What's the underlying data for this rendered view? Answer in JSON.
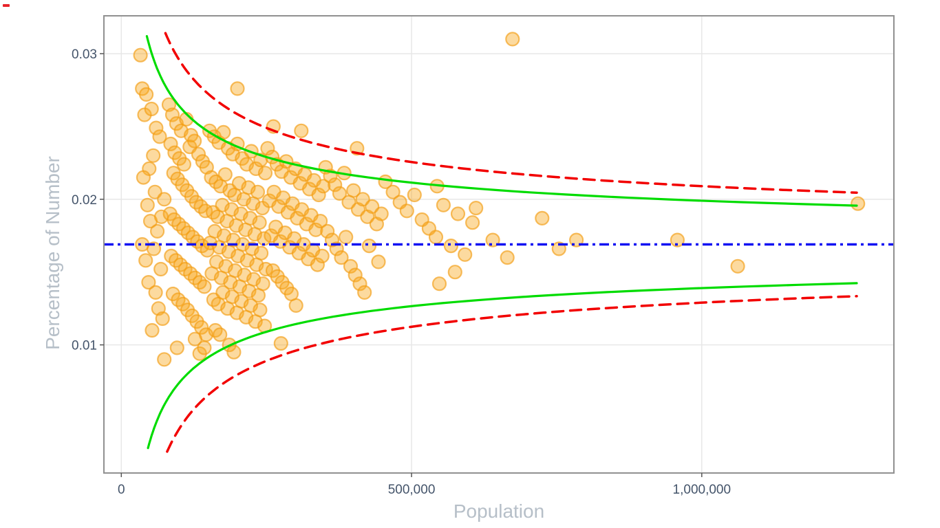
{
  "chart_data": {
    "type": "scatter",
    "title": "",
    "xlabel": "Population",
    "ylabel": "Percentage of Number",
    "xlim": [
      -30000,
      1331000
    ],
    "ylim": [
      0.0012,
      0.0326
    ],
    "grid": true,
    "legend": "none",
    "x_ticks": {
      "values": [
        0,
        500000,
        1000000
      ],
      "labels": [
        "0",
        "500,000",
        "1,000,000"
      ]
    },
    "y_ticks": {
      "values": [
        0.01,
        0.02,
        0.03
      ],
      "labels": [
        "0.01",
        "0.02",
        "0.03"
      ]
    },
    "mean_line": {
      "value": 0.0169,
      "color": "#1212f2",
      "pattern": "dash-dot"
    },
    "funnel_limits": {
      "inner": {
        "multiplier": 3.0,
        "color": "#00dc00",
        "style": "solid",
        "n_start_upper": 44000,
        "n_start_lower": 46000,
        "n_end": 1267000
      },
      "outer": {
        "multiplier": 4.0,
        "color": "#f20000",
        "style": "dashed",
        "n_start_upper": 76000,
        "n_start_lower": 79000,
        "n_end": 1267000
      }
    },
    "point_style": {
      "fill": "#f9a61b",
      "fill_opacity": 0.42,
      "stroke": "#f39c12",
      "stroke_opacity": 0.65,
      "radius": 9.5
    },
    "points": [
      [
        33000,
        0.0299
      ],
      [
        36000,
        0.0276
      ],
      [
        43000,
        0.0272
      ],
      [
        40000,
        0.0258
      ],
      [
        52000,
        0.0262
      ],
      [
        48000,
        0.0221
      ],
      [
        55000,
        0.023
      ],
      [
        38000,
        0.0215
      ],
      [
        60000,
        0.0249
      ],
      [
        66000,
        0.0243
      ],
      [
        58000,
        0.0205
      ],
      [
        45000,
        0.0196
      ],
      [
        50000,
        0.0185
      ],
      [
        62000,
        0.0178
      ],
      [
        56000,
        0.0166
      ],
      [
        42000,
        0.0158
      ],
      [
        68000,
        0.0152
      ],
      [
        47000,
        0.0143
      ],
      [
        59000,
        0.0136
      ],
      [
        64000,
        0.0125
      ],
      [
        71000,
        0.0118
      ],
      [
        53000,
        0.011
      ],
      [
        74000,
        0.009
      ],
      [
        69000,
        0.0188
      ],
      [
        36000,
        0.0169
      ],
      [
        74000,
        0.02
      ],
      [
        82000,
        0.0265
      ],
      [
        88000,
        0.0258
      ],
      [
        95000,
        0.0252
      ],
      [
        103000,
        0.0247
      ],
      [
        112000,
        0.0255
      ],
      [
        120000,
        0.0244
      ],
      [
        85000,
        0.0238
      ],
      [
        92000,
        0.0232
      ],
      [
        100000,
        0.0228
      ],
      [
        108000,
        0.0224
      ],
      [
        118000,
        0.0236
      ],
      [
        126000,
        0.024
      ],
      [
        133000,
        0.0231
      ],
      [
        140000,
        0.0226
      ],
      [
        147000,
        0.0222
      ],
      [
        90000,
        0.0218
      ],
      [
        97000,
        0.0214
      ],
      [
        105000,
        0.021
      ],
      [
        113000,
        0.0206
      ],
      [
        121000,
        0.0202
      ],
      [
        129000,
        0.0198
      ],
      [
        137000,
        0.0195
      ],
      [
        145000,
        0.0192
      ],
      [
        84000,
        0.019
      ],
      [
        91000,
        0.0186
      ],
      [
        99000,
        0.0183
      ],
      [
        107000,
        0.018
      ],
      [
        115000,
        0.0177
      ],
      [
        123000,
        0.0174
      ],
      [
        131000,
        0.0171
      ],
      [
        139000,
        0.0168
      ],
      [
        148000,
        0.0165
      ],
      [
        86000,
        0.0161
      ],
      [
        94000,
        0.0158
      ],
      [
        102000,
        0.0155
      ],
      [
        110000,
        0.0152
      ],
      [
        119000,
        0.0149
      ],
      [
        127000,
        0.0146
      ],
      [
        135000,
        0.0143
      ],
      [
        143000,
        0.014
      ],
      [
        89000,
        0.0135
      ],
      [
        98000,
        0.0131
      ],
      [
        106000,
        0.0128
      ],
      [
        114000,
        0.0124
      ],
      [
        122000,
        0.012
      ],
      [
        130000,
        0.0116
      ],
      [
        138000,
        0.0112
      ],
      [
        146000,
        0.0107
      ],
      [
        127000,
        0.0104
      ],
      [
        96000,
        0.0098
      ],
      [
        135000,
        0.0094
      ],
      [
        143000,
        0.0098
      ],
      [
        152000,
        0.0247
      ],
      [
        160000,
        0.0243
      ],
      [
        168000,
        0.0239
      ],
      [
        176000,
        0.0246
      ],
      [
        184000,
        0.0235
      ],
      [
        192000,
        0.0231
      ],
      [
        200000,
        0.0238
      ],
      [
        208000,
        0.0228
      ],
      [
        216000,
        0.0224
      ],
      [
        224000,
        0.0233
      ],
      [
        232000,
        0.0221
      ],
      [
        240000,
        0.0227
      ],
      [
        248000,
        0.0218
      ],
      [
        155000,
        0.0215
      ],
      [
        163000,
        0.0212
      ],
      [
        171000,
        0.0209
      ],
      [
        179000,
        0.0217
      ],
      [
        187000,
        0.0206
      ],
      [
        195000,
        0.0203
      ],
      [
        203000,
        0.0211
      ],
      [
        211000,
        0.02
      ],
      [
        219000,
        0.0208
      ],
      [
        227000,
        0.0197
      ],
      [
        235000,
        0.0205
      ],
      [
        243000,
        0.0194
      ],
      [
        158000,
        0.0191
      ],
      [
        166000,
        0.0188
      ],
      [
        174000,
        0.0196
      ],
      [
        182000,
        0.0185
      ],
      [
        190000,
        0.0193
      ],
      [
        198000,
        0.0182
      ],
      [
        206000,
        0.019
      ],
      [
        214000,
        0.0179
      ],
      [
        222000,
        0.0187
      ],
      [
        230000,
        0.0176
      ],
      [
        238000,
        0.0184
      ],
      [
        246000,
        0.0173
      ],
      [
        153000,
        0.017
      ],
      [
        161000,
        0.0178
      ],
      [
        169000,
        0.0167
      ],
      [
        177000,
        0.0175
      ],
      [
        185000,
        0.0164
      ],
      [
        193000,
        0.0172
      ],
      [
        201000,
        0.0161
      ],
      [
        209000,
        0.0169
      ],
      [
        217000,
        0.0158
      ],
      [
        225000,
        0.0166
      ],
      [
        233000,
        0.0155
      ],
      [
        241000,
        0.0163
      ],
      [
        249000,
        0.0152
      ],
      [
        156000,
        0.0149
      ],
      [
        164000,
        0.0157
      ],
      [
        172000,
        0.0146
      ],
      [
        180000,
        0.0154
      ],
      [
        188000,
        0.0143
      ],
      [
        196000,
        0.0151
      ],
      [
        204000,
        0.014
      ],
      [
        212000,
        0.0148
      ],
      [
        220000,
        0.0137
      ],
      [
        228000,
        0.0145
      ],
      [
        236000,
        0.0134
      ],
      [
        244000,
        0.0142
      ],
      [
        159000,
        0.0131
      ],
      [
        167000,
        0.0128
      ],
      [
        175000,
        0.0136
      ],
      [
        183000,
        0.0125
      ],
      [
        191000,
        0.0133
      ],
      [
        199000,
        0.0122
      ],
      [
        207000,
        0.013
      ],
      [
        215000,
        0.0119
      ],
      [
        223000,
        0.0127
      ],
      [
        231000,
        0.0116
      ],
      [
        239000,
        0.0124
      ],
      [
        247000,
        0.0113
      ],
      [
        162000,
        0.011
      ],
      [
        170000,
        0.0107
      ],
      [
        186000,
        0.01
      ],
      [
        194000,
        0.0095
      ],
      [
        252000,
        0.0235
      ],
      [
        260000,
        0.0229
      ],
      [
        268000,
        0.0224
      ],
      [
        276000,
        0.0219
      ],
      [
        284000,
        0.0226
      ],
      [
        292000,
        0.0215
      ],
      [
        300000,
        0.0221
      ],
      [
        308000,
        0.0211
      ],
      [
        316000,
        0.0217
      ],
      [
        324000,
        0.0207
      ],
      [
        332000,
        0.0213
      ],
      [
        340000,
        0.0203
      ],
      [
        348000,
        0.0209
      ],
      [
        255000,
        0.0199
      ],
      [
        263000,
        0.0205
      ],
      [
        271000,
        0.0195
      ],
      [
        279000,
        0.0201
      ],
      [
        287000,
        0.0191
      ],
      [
        295000,
        0.0197
      ],
      [
        303000,
        0.0187
      ],
      [
        311000,
        0.0193
      ],
      [
        319000,
        0.0183
      ],
      [
        327000,
        0.0189
      ],
      [
        335000,
        0.0179
      ],
      [
        343000,
        0.0185
      ],
      [
        258000,
        0.0175
      ],
      [
        266000,
        0.0181
      ],
      [
        274000,
        0.0171
      ],
      [
        282000,
        0.0177
      ],
      [
        290000,
        0.0167
      ],
      [
        298000,
        0.0173
      ],
      [
        306000,
        0.0163
      ],
      [
        314000,
        0.0169
      ],
      [
        322000,
        0.0159
      ],
      [
        330000,
        0.0165
      ],
      [
        338000,
        0.0155
      ],
      [
        346000,
        0.0161
      ],
      [
        261000,
        0.0151
      ],
      [
        269000,
        0.0147
      ],
      [
        277000,
        0.0143
      ],
      [
        285000,
        0.0139
      ],
      [
        293000,
        0.0135
      ],
      [
        301000,
        0.0127
      ],
      [
        275000,
        0.0101
      ],
      [
        352000,
        0.0222
      ],
      [
        360000,
        0.0216
      ],
      [
        368000,
        0.021
      ],
      [
        376000,
        0.0204
      ],
      [
        384000,
        0.0218
      ],
      [
        392000,
        0.0198
      ],
      [
        400000,
        0.0206
      ],
      [
        408000,
        0.0193
      ],
      [
        416000,
        0.02
      ],
      [
        424000,
        0.0188
      ],
      [
        432000,
        0.0195
      ],
      [
        440000,
        0.0183
      ],
      [
        448000,
        0.019
      ],
      [
        355000,
        0.0178
      ],
      [
        363000,
        0.0172
      ],
      [
        371000,
        0.0166
      ],
      [
        379000,
        0.016
      ],
      [
        387000,
        0.0174
      ],
      [
        395000,
        0.0154
      ],
      [
        403000,
        0.0148
      ],
      [
        411000,
        0.0142
      ],
      [
        419000,
        0.0136
      ],
      [
        427000,
        0.0168
      ],
      [
        443000,
        0.0157
      ],
      [
        455000,
        0.0212
      ],
      [
        468000,
        0.0205
      ],
      [
        480000,
        0.0198
      ],
      [
        492000,
        0.0192
      ],
      [
        505000,
        0.0203
      ],
      [
        518000,
        0.0186
      ],
      [
        530000,
        0.018
      ],
      [
        542000,
        0.0174
      ],
      [
        555000,
        0.0196
      ],
      [
        568000,
        0.0168
      ],
      [
        580000,
        0.019
      ],
      [
        592000,
        0.0162
      ],
      [
        605000,
        0.0184
      ],
      [
        611000,
        0.0194
      ],
      [
        575000,
        0.015
      ],
      [
        548000,
        0.0142
      ],
      [
        200000,
        0.0276
      ],
      [
        262000,
        0.025
      ],
      [
        310000,
        0.0247
      ],
      [
        406000,
        0.0235
      ],
      [
        544000,
        0.0209
      ],
      [
        674000,
        0.031
      ],
      [
        640000,
        0.0172
      ],
      [
        665000,
        0.016
      ],
      [
        725000,
        0.0187
      ],
      [
        754000,
        0.0166
      ],
      [
        784000,
        0.0172
      ],
      [
        958000,
        0.0172
      ],
      [
        1062000,
        0.0154
      ],
      [
        1269000,
        0.0197
      ]
    ]
  },
  "styles": {
    "plot_border_color": "#909090",
    "gridline_color": "#e7e7e7",
    "tick_mark_color": "#555555",
    "tick_label_color": "#44546a",
    "axis_title_color": "#b6bfc8",
    "background": "#ffffff"
  }
}
